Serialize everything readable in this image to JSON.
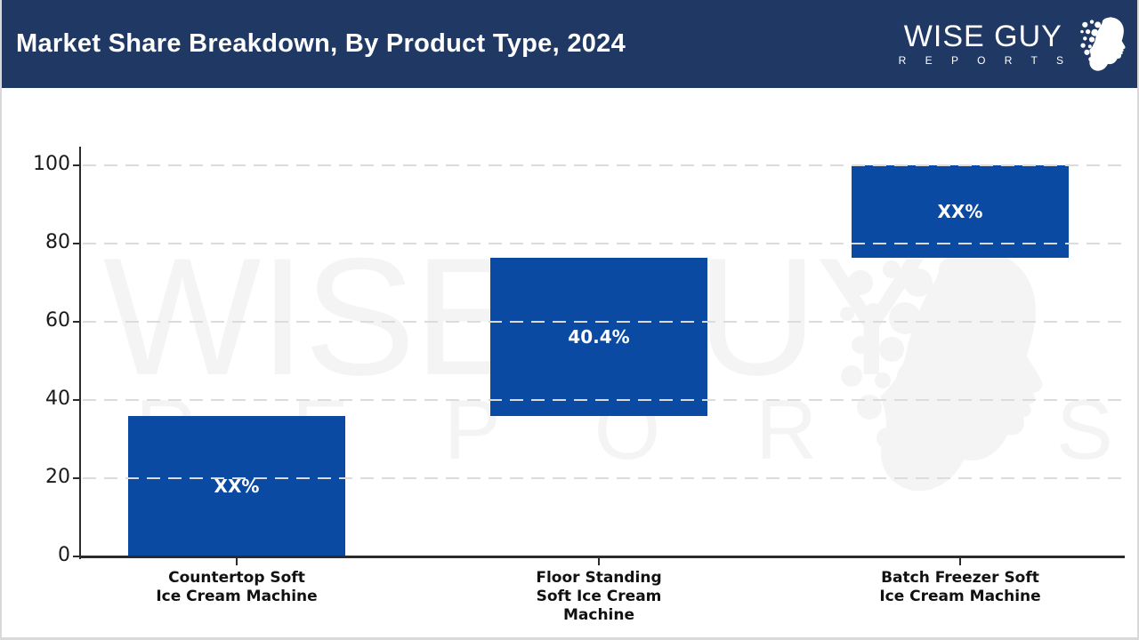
{
  "header": {
    "title": "Market Share Breakdown, By Product Type, 2024",
    "logo": {
      "wordmark": "WISE GUY",
      "subtext": "R E P O R T S"
    }
  },
  "watermark": {
    "line1": "WISE GUY",
    "line2": "R E P O R T S"
  },
  "colors": {
    "header_bg": "#1f3864",
    "bar": "#0b4aa2",
    "axis": "#2b2b2b",
    "grid": "#dcdcdc",
    "watermark": "#f4f4f4",
    "border": "#d9d9d9",
    "title_text": "#ffffff"
  },
  "chart_data": {
    "type": "bar",
    "variant": "waterfall",
    "title": "Market Share Breakdown, By Product Type, 2024",
    "xlabel": "",
    "ylabel": "",
    "ylim": [
      0,
      100
    ],
    "yticks": [
      0,
      20,
      40,
      60,
      80,
      100
    ],
    "grid": "horizontal-dashed",
    "legend": "none",
    "bar_color": "#0b4aa2",
    "categories": [
      "Countertop Soft\nIce Cream Machine",
      "Floor Standing\nSoft Ice Cream\nMachine",
      "Batch Freezer Soft\nIce Cream Machine"
    ],
    "bars": [
      {
        "category": "Countertop Soft Ice Cream Machine",
        "start": 0,
        "end": 35.9,
        "value": 35.9,
        "label": "XX%"
      },
      {
        "category": "Floor Standing Soft Ice Cream Machine",
        "start": 35.9,
        "end": 76.3,
        "value": 40.4,
        "label": "40.4%"
      },
      {
        "category": "Batch Freezer Soft Ice Cream Machine",
        "start": 76.3,
        "end": 100,
        "value": 23.7,
        "label": "XX%"
      }
    ]
  }
}
